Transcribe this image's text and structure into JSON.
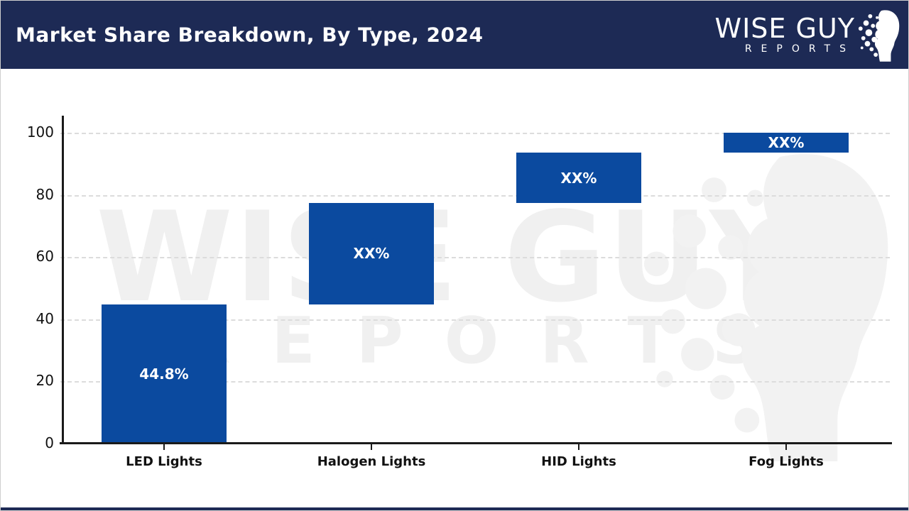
{
  "header": {
    "title": "Market Share Breakdown, By Type, 2024",
    "logo": {
      "line1": "WISE GUY",
      "line2": "REPORTS"
    }
  },
  "watermark": {
    "line1": "WISE GUY",
    "line2": "REPORTS"
  },
  "chart_data": {
    "type": "bar",
    "subtype": "waterfall",
    "title": "Market Share Breakdown, By Type, 2024",
    "categories": [
      "LED Lights",
      "Halogen Lights",
      "HID Lights",
      "Fog Lights"
    ],
    "bars": [
      {
        "category": "LED Lights",
        "start": 0,
        "end": 44.8,
        "label": "44.8%"
      },
      {
        "category": "Halogen Lights",
        "start": 44.8,
        "end": 77.5,
        "label": "XX%"
      },
      {
        "category": "HID Lights",
        "start": 77.5,
        "end": 93.5,
        "label": "XX%"
      },
      {
        "category": "Fog Lights",
        "start": 93.5,
        "end": 100,
        "label": "XX%"
      }
    ],
    "ylim": [
      0,
      100
    ],
    "yticks": [
      0,
      20,
      40,
      60,
      80,
      100
    ],
    "grid": "horizontal-dashed",
    "legend": "none",
    "xlabel": "",
    "ylabel": ""
  },
  "colors": {
    "header_bg": "#1d2a55",
    "footer_bg": "#1d2a55",
    "bar": "#0b4a9f",
    "bar_label": "#ffffff",
    "grid": "#dcdcdc",
    "axis": "#1a1a1a",
    "watermark": "#f0f0f0"
  }
}
